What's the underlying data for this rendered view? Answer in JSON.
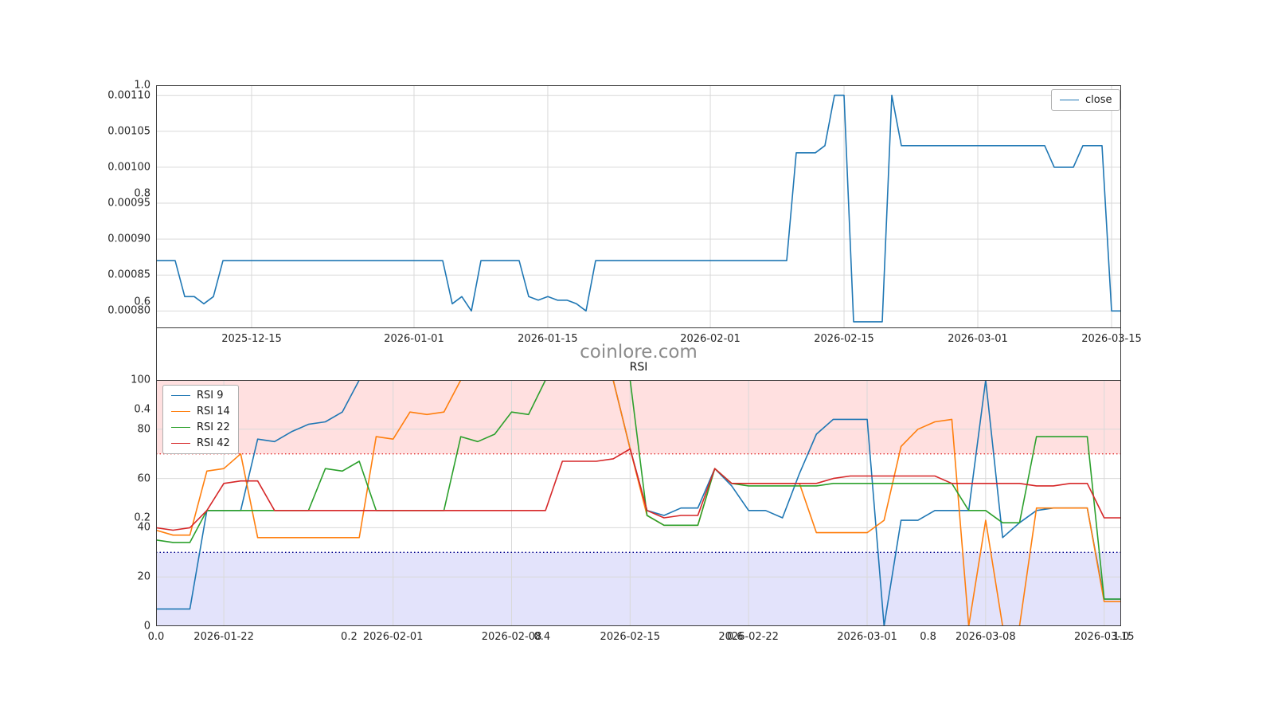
{
  "watermark": "coinlore.com",
  "rsi_title": "RSI",
  "price_chart": {
    "type": "line",
    "ylim": [
      0.000776,
      0.001114
    ],
    "grid": true,
    "legend_position": "upper right",
    "legend": [
      {
        "label": "close",
        "color": "#1f77b4"
      }
    ],
    "y_ticks": [
      {
        "label": "0.00110",
        "v": 0.0011
      },
      {
        "label": "0.00105",
        "v": 0.00105
      },
      {
        "label": "0.00100",
        "v": 0.001
      },
      {
        "label": "0.00095",
        "v": 0.00095
      },
      {
        "label": "0.00090",
        "v": 0.0009
      },
      {
        "label": "0.00085",
        "v": 0.00085
      },
      {
        "label": "0.00080",
        "v": 0.0008
      }
    ],
    "x_ticks": [
      {
        "label": "2025-12-15",
        "f": 0.099
      },
      {
        "label": "2026-01-01",
        "f": 0.2673
      },
      {
        "label": "2026-01-15",
        "f": 0.4059
      },
      {
        "label": "2026-02-01",
        "f": 0.5743
      },
      {
        "label": "2026-02-15",
        "f": 0.7129
      },
      {
        "label": "2026-03-01",
        "f": 0.8515
      },
      {
        "label": "2026-03-15",
        "f": 0.9901
      }
    ],
    "x_range": [
      "2025-12-05",
      "2026-03-16"
    ],
    "series": [
      {
        "name": "close",
        "color": "#1f77b4",
        "values": [
          0.00087,
          0.00087,
          0.00087,
          0.00082,
          0.00082,
          0.00081,
          0.00082,
          0.00087,
          0.00087,
          0.00087,
          0.00087,
          0.00087,
          0.00087,
          0.00087,
          0.00087,
          0.00087,
          0.00087,
          0.00087,
          0.00087,
          0.00087,
          0.00087,
          0.00087,
          0.00087,
          0.00087,
          0.00087,
          0.00087,
          0.00087,
          0.00087,
          0.00087,
          0.00087,
          0.00087,
          0.00081,
          0.00082,
          0.0008,
          0.00087,
          0.00087,
          0.00087,
          0.00087,
          0.00087,
          0.00082,
          0.000815,
          0.00082,
          0.000815,
          0.000815,
          0.00081,
          0.0008,
          0.00087,
          0.00087,
          0.00087,
          0.00087,
          0.00087,
          0.00087,
          0.00087,
          0.00087,
          0.00087,
          0.00087,
          0.00087,
          0.00087,
          0.00087,
          0.00087,
          0.00087,
          0.00087,
          0.00087,
          0.00087,
          0.00087,
          0.00087,
          0.00087,
          0.00102,
          0.00102,
          0.00102,
          0.00103,
          0.0011,
          0.0011,
          0.000785,
          0.000785,
          0.000785,
          0.000785,
          0.0011,
          0.00103,
          0.00103,
          0.00103,
          0.00103,
          0.00103,
          0.00103,
          0.00103,
          0.00103,
          0.00103,
          0.00103,
          0.00103,
          0.00103,
          0.00103,
          0.00103,
          0.00103,
          0.00103,
          0.001,
          0.001,
          0.001,
          0.00103,
          0.00103,
          0.00103,
          0.0008,
          0.0008
        ]
      }
    ]
  },
  "rsi_chart": {
    "type": "line",
    "ylim": [
      0,
      100
    ],
    "grid": true,
    "legend_position": "upper left",
    "legend": [
      {
        "label": "RSI 9",
        "color": "#1f77b4"
      },
      {
        "label": "RSI 14",
        "color": "#ff7f0e"
      },
      {
        "label": "RSI 22",
        "color": "#2ca02c"
      },
      {
        "label": "RSI 42",
        "color": "#d62728"
      }
    ],
    "bands": [
      {
        "from": 70,
        "to": 100,
        "color": "rgba(255,0,0,0.12)"
      },
      {
        "from": 0,
        "to": 30,
        "color": "rgba(0,0,220,0.11)"
      }
    ],
    "hlines": [
      {
        "v": 70,
        "color": "#e03131"
      },
      {
        "v": 30,
        "color": "#00008b"
      }
    ],
    "y_ticks": [
      {
        "label": "100",
        "v": 100
      },
      {
        "label": "80",
        "v": 80
      },
      {
        "label": "60",
        "v": 60
      },
      {
        "label": "40",
        "v": 40
      },
      {
        "label": "20",
        "v": 20
      },
      {
        "label": "0",
        "v": 0
      }
    ],
    "x_ticks": [
      {
        "label": "2026-01-22",
        "f": 0.0702
      },
      {
        "label": "2026-02-01",
        "f": 0.2456
      },
      {
        "label": "2026-02-08",
        "f": 0.3684
      },
      {
        "label": "2026-02-15",
        "f": 0.4912
      },
      {
        "label": "2026-02-22",
        "f": 0.614
      },
      {
        "label": "2026-03-01",
        "f": 0.7368
      },
      {
        "label": "2026-03-08",
        "f": 0.8596
      },
      {
        "label": "2026-03-15",
        "f": 0.9825
      }
    ],
    "x_range": [
      "2026-01-18",
      "2026-03-16"
    ],
    "series": [
      {
        "name": "RSI 9",
        "color": "#1f77b4",
        "values": [
          7,
          7,
          7,
          47,
          47,
          47,
          76,
          75,
          79,
          82,
          83,
          87,
          100,
          100,
          100,
          100,
          100,
          100,
          100,
          100,
          100,
          100,
          100,
          100,
          100,
          100,
          100,
          100,
          72,
          47,
          45,
          48,
          48,
          64,
          57,
          47,
          47,
          44,
          62,
          78,
          84,
          84,
          84,
          0,
          43,
          43,
          47,
          47,
          47,
          100,
          36,
          42,
          47,
          48,
          48,
          48,
          11,
          11
        ]
      },
      {
        "name": "RSI 14",
        "color": "#ff7f0e",
        "values": [
          39,
          37,
          37,
          63,
          64,
          70,
          36,
          36,
          36,
          36,
          36,
          36,
          36,
          77,
          76,
          87,
          86,
          87,
          100,
          100,
          100,
          100,
          100,
          100,
          100,
          100,
          100,
          100,
          72,
          45,
          41,
          41,
          41,
          64,
          58,
          58,
          58,
          58,
          58,
          38,
          38,
          38,
          38,
          43,
          73,
          80,
          83,
          84,
          0,
          43,
          0,
          0,
          48,
          48,
          48,
          48,
          10,
          10
        ]
      },
      {
        "name": "RSI 22",
        "color": "#2ca02c",
        "values": [
          35,
          34,
          34,
          47,
          47,
          47,
          47,
          47,
          47,
          47,
          64,
          63,
          67,
          47,
          47,
          47,
          47,
          47,
          77,
          75,
          78,
          87,
          86,
          100,
          100,
          100,
          100,
          100,
          100,
          45,
          41,
          41,
          41,
          64,
          58,
          57,
          57,
          57,
          57,
          57,
          58,
          58,
          58,
          58,
          58,
          58,
          58,
          58,
          47,
          47,
          42,
          42,
          77,
          77,
          77,
          77,
          11,
          11
        ]
      },
      {
        "name": "RSI 42",
        "color": "#d62728",
        "values": [
          40,
          39,
          40,
          47,
          58,
          59,
          59,
          47,
          47,
          47,
          47,
          47,
          47,
          47,
          47,
          47,
          47,
          47,
          47,
          47,
          47,
          47,
          47,
          47,
          67,
          67,
          67,
          68,
          72,
          47,
          44,
          45,
          45,
          64,
          58,
          58,
          58,
          58,
          58,
          58,
          60,
          61,
          61,
          61,
          61,
          61,
          61,
          58,
          58,
          58,
          58,
          58,
          57,
          57,
          58,
          58,
          44,
          44
        ]
      }
    ]
  },
  "hidden_axes": {
    "y_ticks": [
      {
        "label": "1.0",
        "f": 0.0
      },
      {
        "label": "0.8",
        "f": 0.2
      },
      {
        "label": "0.6",
        "f": 0.4
      },
      {
        "label": "0.4",
        "f": 0.6
      },
      {
        "label": "0.2",
        "f": 0.8
      }
    ],
    "x_ticks": [
      {
        "label": "0.0",
        "f": 0.0
      },
      {
        "label": "0.2",
        "f": 0.2
      },
      {
        "label": "0.4",
        "f": 0.4
      },
      {
        "label": "0.6",
        "f": 0.6
      },
      {
        "label": "0.8",
        "f": 0.8
      },
      {
        "label": "1.0",
        "f": 1.0
      }
    ]
  }
}
